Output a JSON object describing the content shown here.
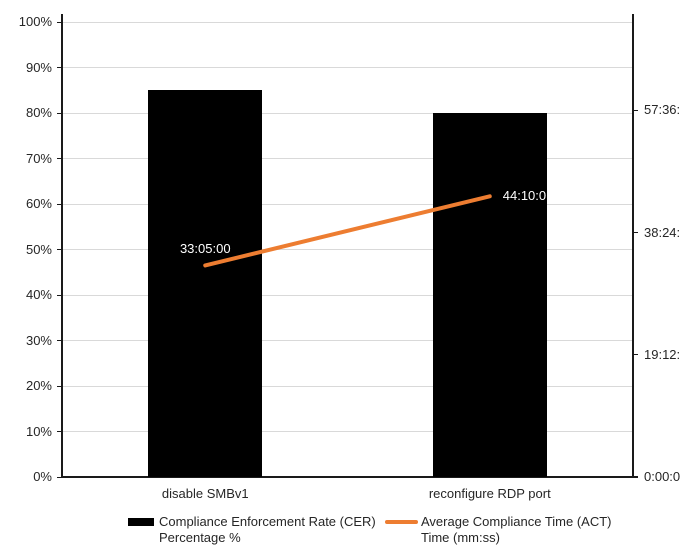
{
  "chart_data": {
    "type": "combo-bar-line",
    "title": "",
    "categories": [
      "disable SMBv1",
      "reconfigure RDP port"
    ],
    "series": [
      {
        "name": "Compliance Enforcement Rate (CER)",
        "name_line2": "Percentage %",
        "chart_type": "bar",
        "axis": "left",
        "color": "#000000",
        "values": [
          85,
          80
        ],
        "unit": "%"
      },
      {
        "name": "Average Compliance Time (ACT)",
        "name_line2": "Time (mm:ss)",
        "chart_type": "line",
        "axis": "right",
        "color": "#ED7D31",
        "point_labels": [
          "33:05:00",
          "44:10:0"
        ],
        "label_color": "#ffffff",
        "axis_fractions": [
          0.465,
          0.617
        ]
      }
    ],
    "left_axis": {
      "min": 0,
      "max": 100,
      "tick_labels": [
        "0%",
        "10%",
        "20%",
        "30%",
        "40%",
        "50%",
        "60%",
        "70%",
        "80%",
        "90%",
        "100%"
      ]
    },
    "right_axis": {
      "tick_labels": [
        "0:00:0",
        "19:12:",
        "38:24:",
        "57:36:"
      ],
      "fractions": [
        0,
        0.269,
        0.537,
        0.806
      ]
    },
    "grid": true,
    "legend_position": "bottom",
    "grid_color": "#d9d9d9",
    "axis_color": "#1a1a1a",
    "background": "#ffffff"
  },
  "legend": {
    "items": [
      {
        "swatch": "bar",
        "color": "#000000",
        "line1": "Compliance Enforcement Rate (CER)",
        "line2": "Percentage %"
      },
      {
        "swatch": "line",
        "color": "#ED7D31",
        "line1": "Average Compliance Time (ACT)",
        "line2": "Time (mm:ss)"
      }
    ]
  }
}
